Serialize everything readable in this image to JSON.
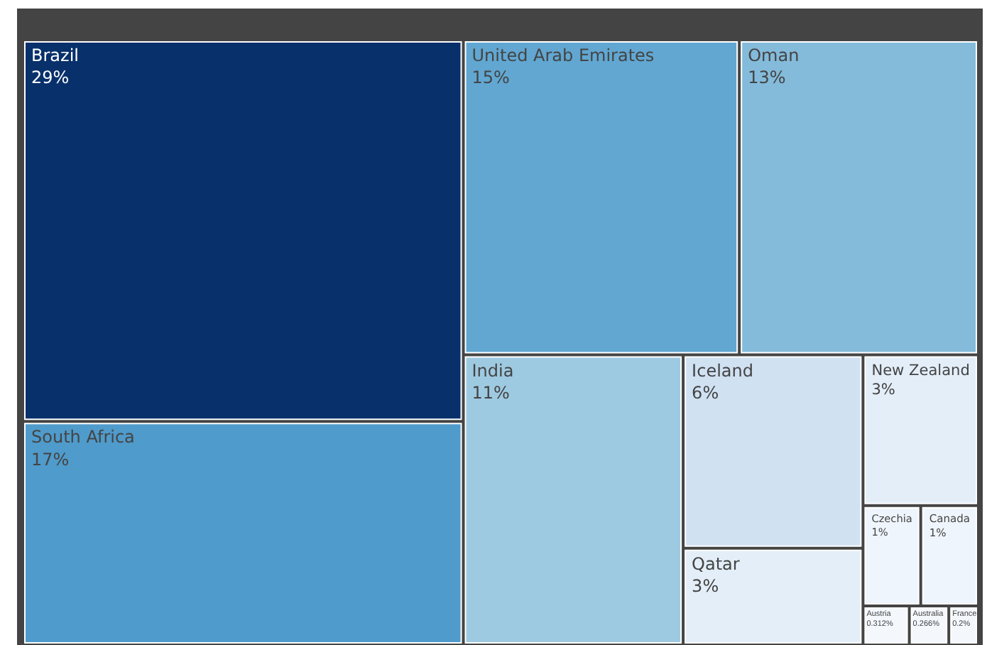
{
  "chart_data": {
    "type": "other",
    "categories": [
      "Brazil",
      "South Africa",
      "United Arab Emirates",
      "Oman",
      "India",
      "Iceland",
      "Qatar",
      "New Zealand",
      "Czechia",
      "Canada",
      "Austria",
      "Australia",
      "France"
    ],
    "values": [
      29,
      17,
      15,
      13,
      11,
      6,
      3,
      3,
      1,
      1,
      0.312,
      0.266,
      0.2
    ],
    "value_labels": [
      "29%",
      "17%",
      "15%",
      "13%",
      "11%",
      "6%",
      "3%",
      "3%",
      "1%",
      "1%",
      "0.312%",
      "0.266%",
      "0.2%"
    ],
    "colors": [
      "#08306b",
      "#4f9bcb",
      "#61a7d2",
      "#84bbdb",
      "#9ecae1",
      "#d0e1f2",
      "#e3eef8",
      "#e3eef8",
      "#eff5fc",
      "#eff5fc",
      "#f4f8fd",
      "#f4f8fd",
      "#f4f8fd"
    ]
  }
}
